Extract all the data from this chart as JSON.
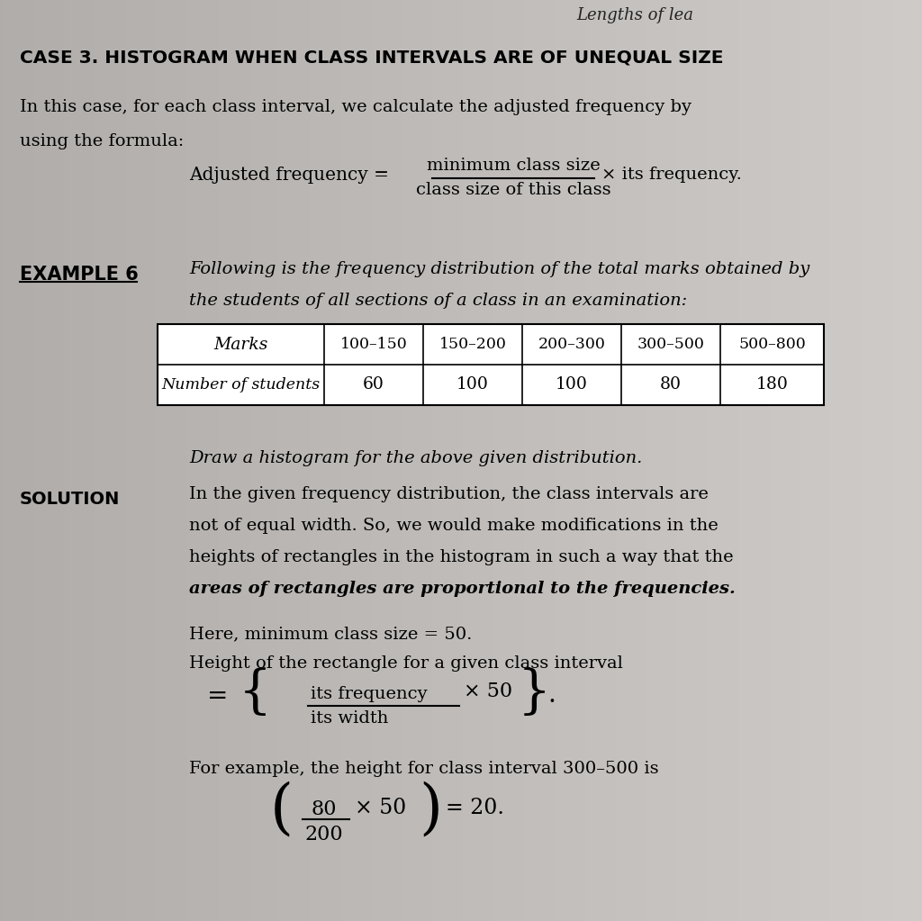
{
  "bg_color_left": "#b8b4b0",
  "bg_color_right": "#d8d4d0",
  "title_top": "Lengths of lea",
  "case_title": "CASE 3. HISTOGRAM WHEN CLASS INTERVALS ARE OF UNEQUAL SIZE",
  "intro_line1": "In this case, for each class interval, we calculate the adjusted frequency by",
  "intro_line2": "using the formula:",
  "formula_label": "Adjusted frequency =",
  "formula_num": "minimum class size",
  "formula_den": "class size of this class",
  "formula_suffix": "× its frequency.",
  "example_label": "EXAMPLE 6",
  "example_text1": "Following is the frequency distribution of the total marks obtained by",
  "example_text2": "the students of all sections of a class in an examination:",
  "table_header_col1": "Marks",
  "table_header_cols": [
    "100–150",
    "150–200",
    "200–300",
    "300–500",
    "500–800"
  ],
  "table_row1_label": "Number of students",
  "table_row1_values": [
    "60",
    "100",
    "100",
    "80",
    "180"
  ],
  "draw_instruction": "Draw a histogram for the above given distribution.",
  "solution_label": "SOLUTION",
  "sol_line1": "In the given frequency distribution, the class intervals are",
  "sol_line2": "not of equal width. So, we would make modifications in the",
  "sol_line3": "heights of rectangles in the histogram in such a way that the",
  "sol_line4_bold": "areas of rectangles are proportional to the frequencies.",
  "here_line": "Here, minimum class size = 50.",
  "height_line": "Height of the rectangle for a given class interval",
  "example_calc_line": "For example, the height for class interval 300–500 is"
}
